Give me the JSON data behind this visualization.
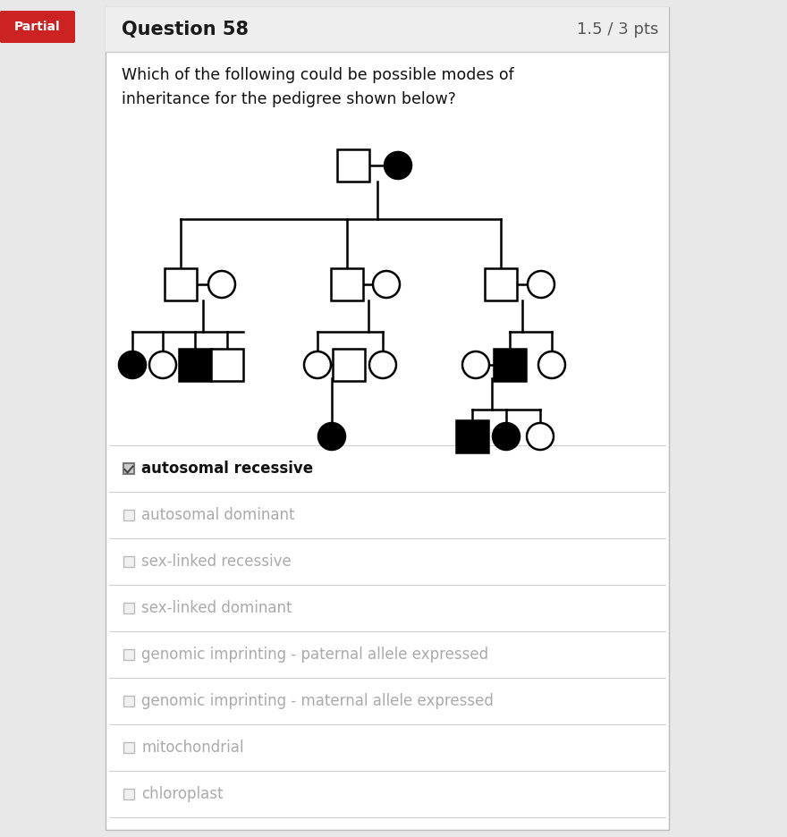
{
  "title": "Question 58",
  "score": "1.5 / 3 pts",
  "partial_label": "Partial",
  "question_text": "Which of the following could be possible modes of\ninheritance for the pedigree shown below?",
  "options": [
    {
      "text": "autosomal recessive",
      "checked": true
    },
    {
      "text": "autosomal dominant",
      "checked": false
    },
    {
      "text": "sex-linked recessive",
      "checked": false
    },
    {
      "text": "sex-linked dominant",
      "checked": false
    },
    {
      "text": "genomic imprinting - paternal allele expressed",
      "checked": false
    },
    {
      "text": "genomic imprinting - maternal allele expressed",
      "checked": false
    },
    {
      "text": "mitochondrial",
      "checked": false
    },
    {
      "text": "chloroplast",
      "checked": false
    }
  ],
  "bg_color": "#e8e8e8",
  "card_color": "#ffffff",
  "header_bg": "#eeeeee",
  "partial_bg": "#cc2222",
  "partial_text_color": "#ffffff",
  "title_color": "#1a1a1a",
  "score_color": "#555555",
  "question_color": "#111111",
  "option_checked_color": "#111111",
  "option_unchecked_color": "#aaaaaa",
  "line_color": "#d0d0d0"
}
